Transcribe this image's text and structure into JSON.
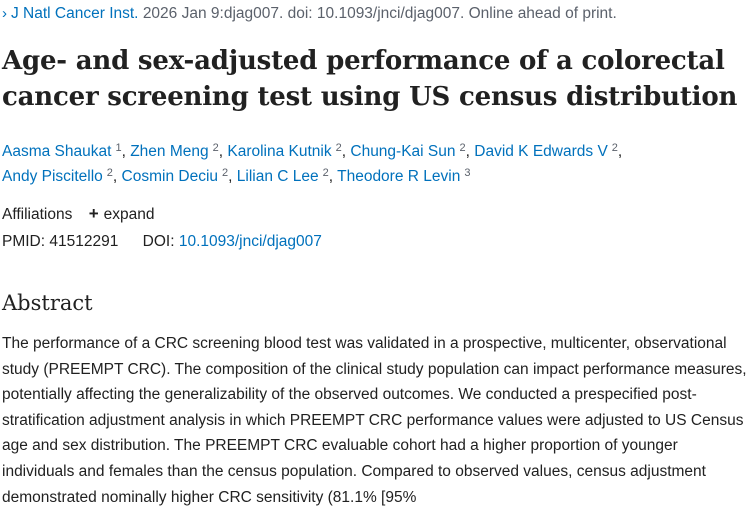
{
  "citation": {
    "chevron": "›",
    "journal": "J Natl Cancer Inst.",
    "details": "2026 Jan 9:djag007. doi: 10.1093/jnci/djag007. Online ahead of print."
  },
  "title": "Age- and sex-adjusted performance of a colorectal cancer screening test using US census distribution",
  "authors": [
    {
      "name": "Aasma Shaukat",
      "aff": "1"
    },
    {
      "name": "Zhen Meng",
      "aff": "2"
    },
    {
      "name": "Karolina Kutnik",
      "aff": "2"
    },
    {
      "name": "Chung-Kai Sun",
      "aff": "2"
    },
    {
      "name": "David K Edwards V",
      "aff": "2"
    },
    {
      "name": "Andy Piscitello",
      "aff": "2"
    },
    {
      "name": "Cosmin Deciu",
      "aff": "2"
    },
    {
      "name": "Lilian C Lee",
      "aff": "2"
    },
    {
      "name": "Theodore R Levin",
      "aff": "3"
    }
  ],
  "affiliations": {
    "label": "Affiliations",
    "expand_icon": "+",
    "expand_label": "expand"
  },
  "identifiers": {
    "pmid_label": "PMID:",
    "pmid": "41512291",
    "doi_label": "DOI:",
    "doi": "10.1093/jnci/djag007"
  },
  "abstract": {
    "heading": "Abstract",
    "text": "The performance of a CRC screening blood test was validated in a prospective, multicenter, observational study (PREEMPT CRC). The composition of the clinical study population can impact performance measures, potentially affecting the generalizability of the observed outcomes. We conducted a prespecified post-stratification adjustment analysis in which PREEMPT CRC performance values were adjusted to US Census age and sex distribution. The PREEMPT CRC evaluable cohort had a higher proportion of younger individuals and females than the census population. Compared to observed values, census adjustment demonstrated nominally higher CRC sensitivity (81.1% [95%"
  }
}
